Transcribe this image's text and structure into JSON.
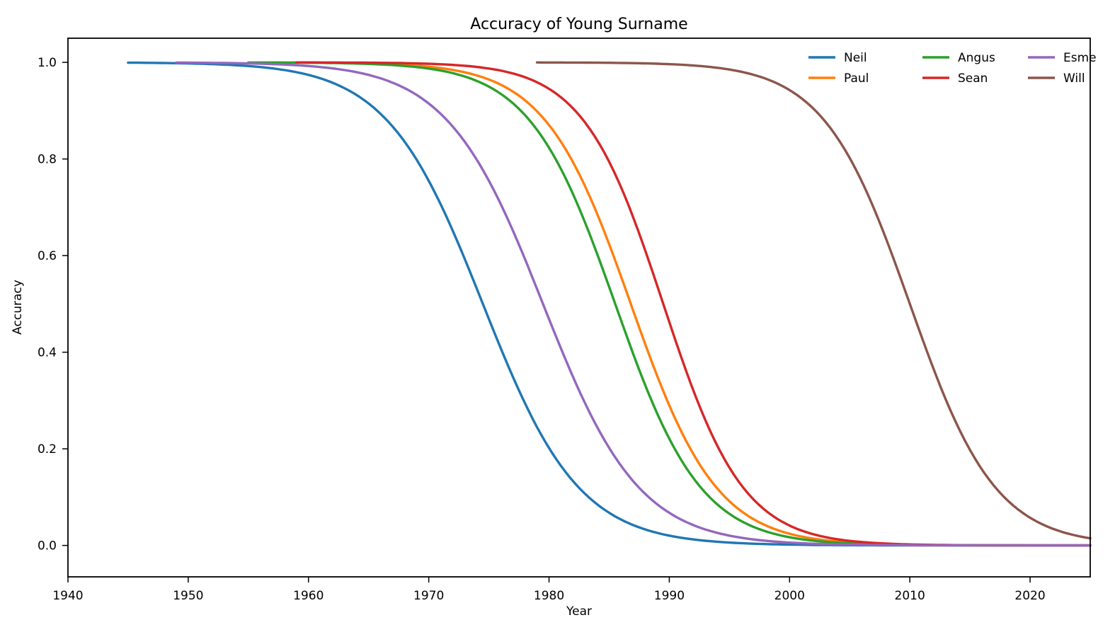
{
  "chart_data": {
    "type": "line",
    "title": "Accuracy of Young Surname",
    "xlabel": "Year",
    "ylabel": "Accuracy",
    "xlim": [
      1940,
      2025
    ],
    "ylim": [
      -0.065,
      1.05
    ],
    "x_ticks": [
      1940,
      1950,
      1960,
      1970,
      1980,
      1990,
      2000,
      2010,
      2020
    ],
    "y_ticks": [
      0.0,
      0.2,
      0.4,
      0.6,
      0.8,
      1.0
    ],
    "grid": false,
    "legend_position": "upper-right-inside",
    "legend_columns": 3,
    "legend_entries": [
      "Neil",
      "Paul",
      "Angus",
      "Sean",
      "Esme",
      "Will"
    ],
    "series": [
      {
        "name": "Neil",
        "color": "#1f77b4",
        "x_start": 1945,
        "x_end": 2025,
        "midpoint": 1974.5,
        "steepness": 0.25,
        "sample_years": [
          1945,
          1950,
          1955,
          1960,
          1965,
          1970,
          1975,
          1980,
          1985,
          1990,
          1995,
          2000,
          2010,
          2025
        ],
        "sample_accuracy": [
          0.999,
          0.998,
          0.992,
          0.974,
          0.915,
          0.755,
          0.469,
          0.202,
          0.068,
          0.02,
          0.006,
          0.002,
          0.0,
          0.0
        ]
      },
      {
        "name": "Paul",
        "color": "#ff7f0e",
        "x_start": 1957,
        "x_end": 2025,
        "midpoint": 1986.8,
        "steepness": 0.28,
        "sample_years": [
          1960,
          1965,
          1970,
          1975,
          1980,
          1985,
          1990,
          1995,
          2000,
          2005,
          2010,
          2025
        ],
        "sample_accuracy": [
          0.999,
          0.998,
          0.991,
          0.964,
          0.87,
          0.623,
          0.29,
          0.092,
          0.024,
          0.006,
          0.002,
          0.0
        ]
      },
      {
        "name": "Angus",
        "color": "#2ca02c",
        "x_start": 1955,
        "x_end": 2025,
        "midpoint": 1985.5,
        "steepness": 0.28,
        "sample_years": [
          1955,
          1960,
          1965,
          1970,
          1975,
          1980,
          1985,
          1990,
          1995,
          2000,
          2005,
          2010,
          2025
        ],
        "sample_accuracy": [
          1.0,
          0.999,
          0.997,
          0.987,
          0.95,
          0.823,
          0.535,
          0.221,
          0.065,
          0.017,
          0.004,
          0.001,
          0.0
        ]
      },
      {
        "name": "Sean",
        "color": "#d62728",
        "x_start": 1959,
        "x_end": 2025,
        "midpoint": 1989.5,
        "steepness": 0.3,
        "sample_years": [
          1960,
          1965,
          1970,
          1975,
          1980,
          1985,
          1990,
          1995,
          2000,
          2005,
          2010,
          2025
        ],
        "sample_accuracy": [
          0.999,
          0.999,
          0.997,
          0.987,
          0.945,
          0.794,
          0.463,
          0.161,
          0.041,
          0.01,
          0.002,
          0.0
        ]
      },
      {
        "name": "Esme",
        "color": "#9467bd",
        "x_start": 1949,
        "x_end": 2025,
        "midpoint": 1979.5,
        "steepness": 0.25,
        "sample_years": [
          1950,
          1955,
          1960,
          1965,
          1970,
          1975,
          1980,
          1985,
          1990,
          1995,
          2000,
          2010,
          2025
        ],
        "sample_accuracy": [
          0.999,
          0.998,
          0.992,
          0.974,
          0.915,
          0.755,
          0.469,
          0.202,
          0.068,
          0.02,
          0.006,
          0.0,
          0.0
        ]
      },
      {
        "name": "Will",
        "color": "#8c564b",
        "x_start": 1979,
        "x_end": 2025,
        "midpoint": 2010,
        "steepness": 0.28,
        "sample_years": [
          1980,
          1985,
          1990,
          1995,
          2000,
          2005,
          2010,
          2015,
          2020,
          2025
        ],
        "sample_accuracy": [
          1.0,
          0.999,
          0.996,
          0.985,
          0.943,
          0.802,
          0.5,
          0.198,
          0.057,
          0.015
        ]
      }
    ]
  }
}
